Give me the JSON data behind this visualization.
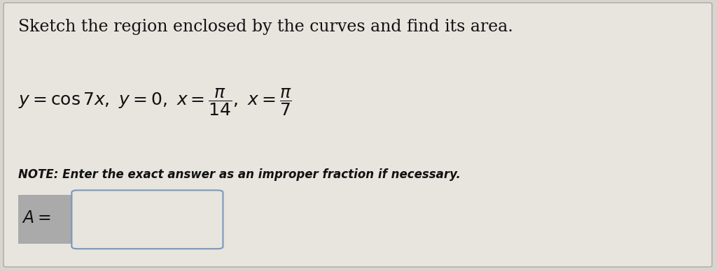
{
  "title": "Sketch the region enclosed by the curves and find its area.",
  "note_text": "NOTE: Enter the exact answer as an improper fraction if necessary.",
  "bg_color": "#d8d4ce",
  "card_bg": "#e8e4de",
  "card_edge": "#aaaaaa",
  "input_box_color": "#e8e4de",
  "input_box_edge": "#7799bb",
  "answer_label_bg": "#aaaaaa",
  "title_fontsize": 17,
  "eq_fontsize": 18,
  "note_fontsize": 12,
  "answer_fontsize": 17
}
